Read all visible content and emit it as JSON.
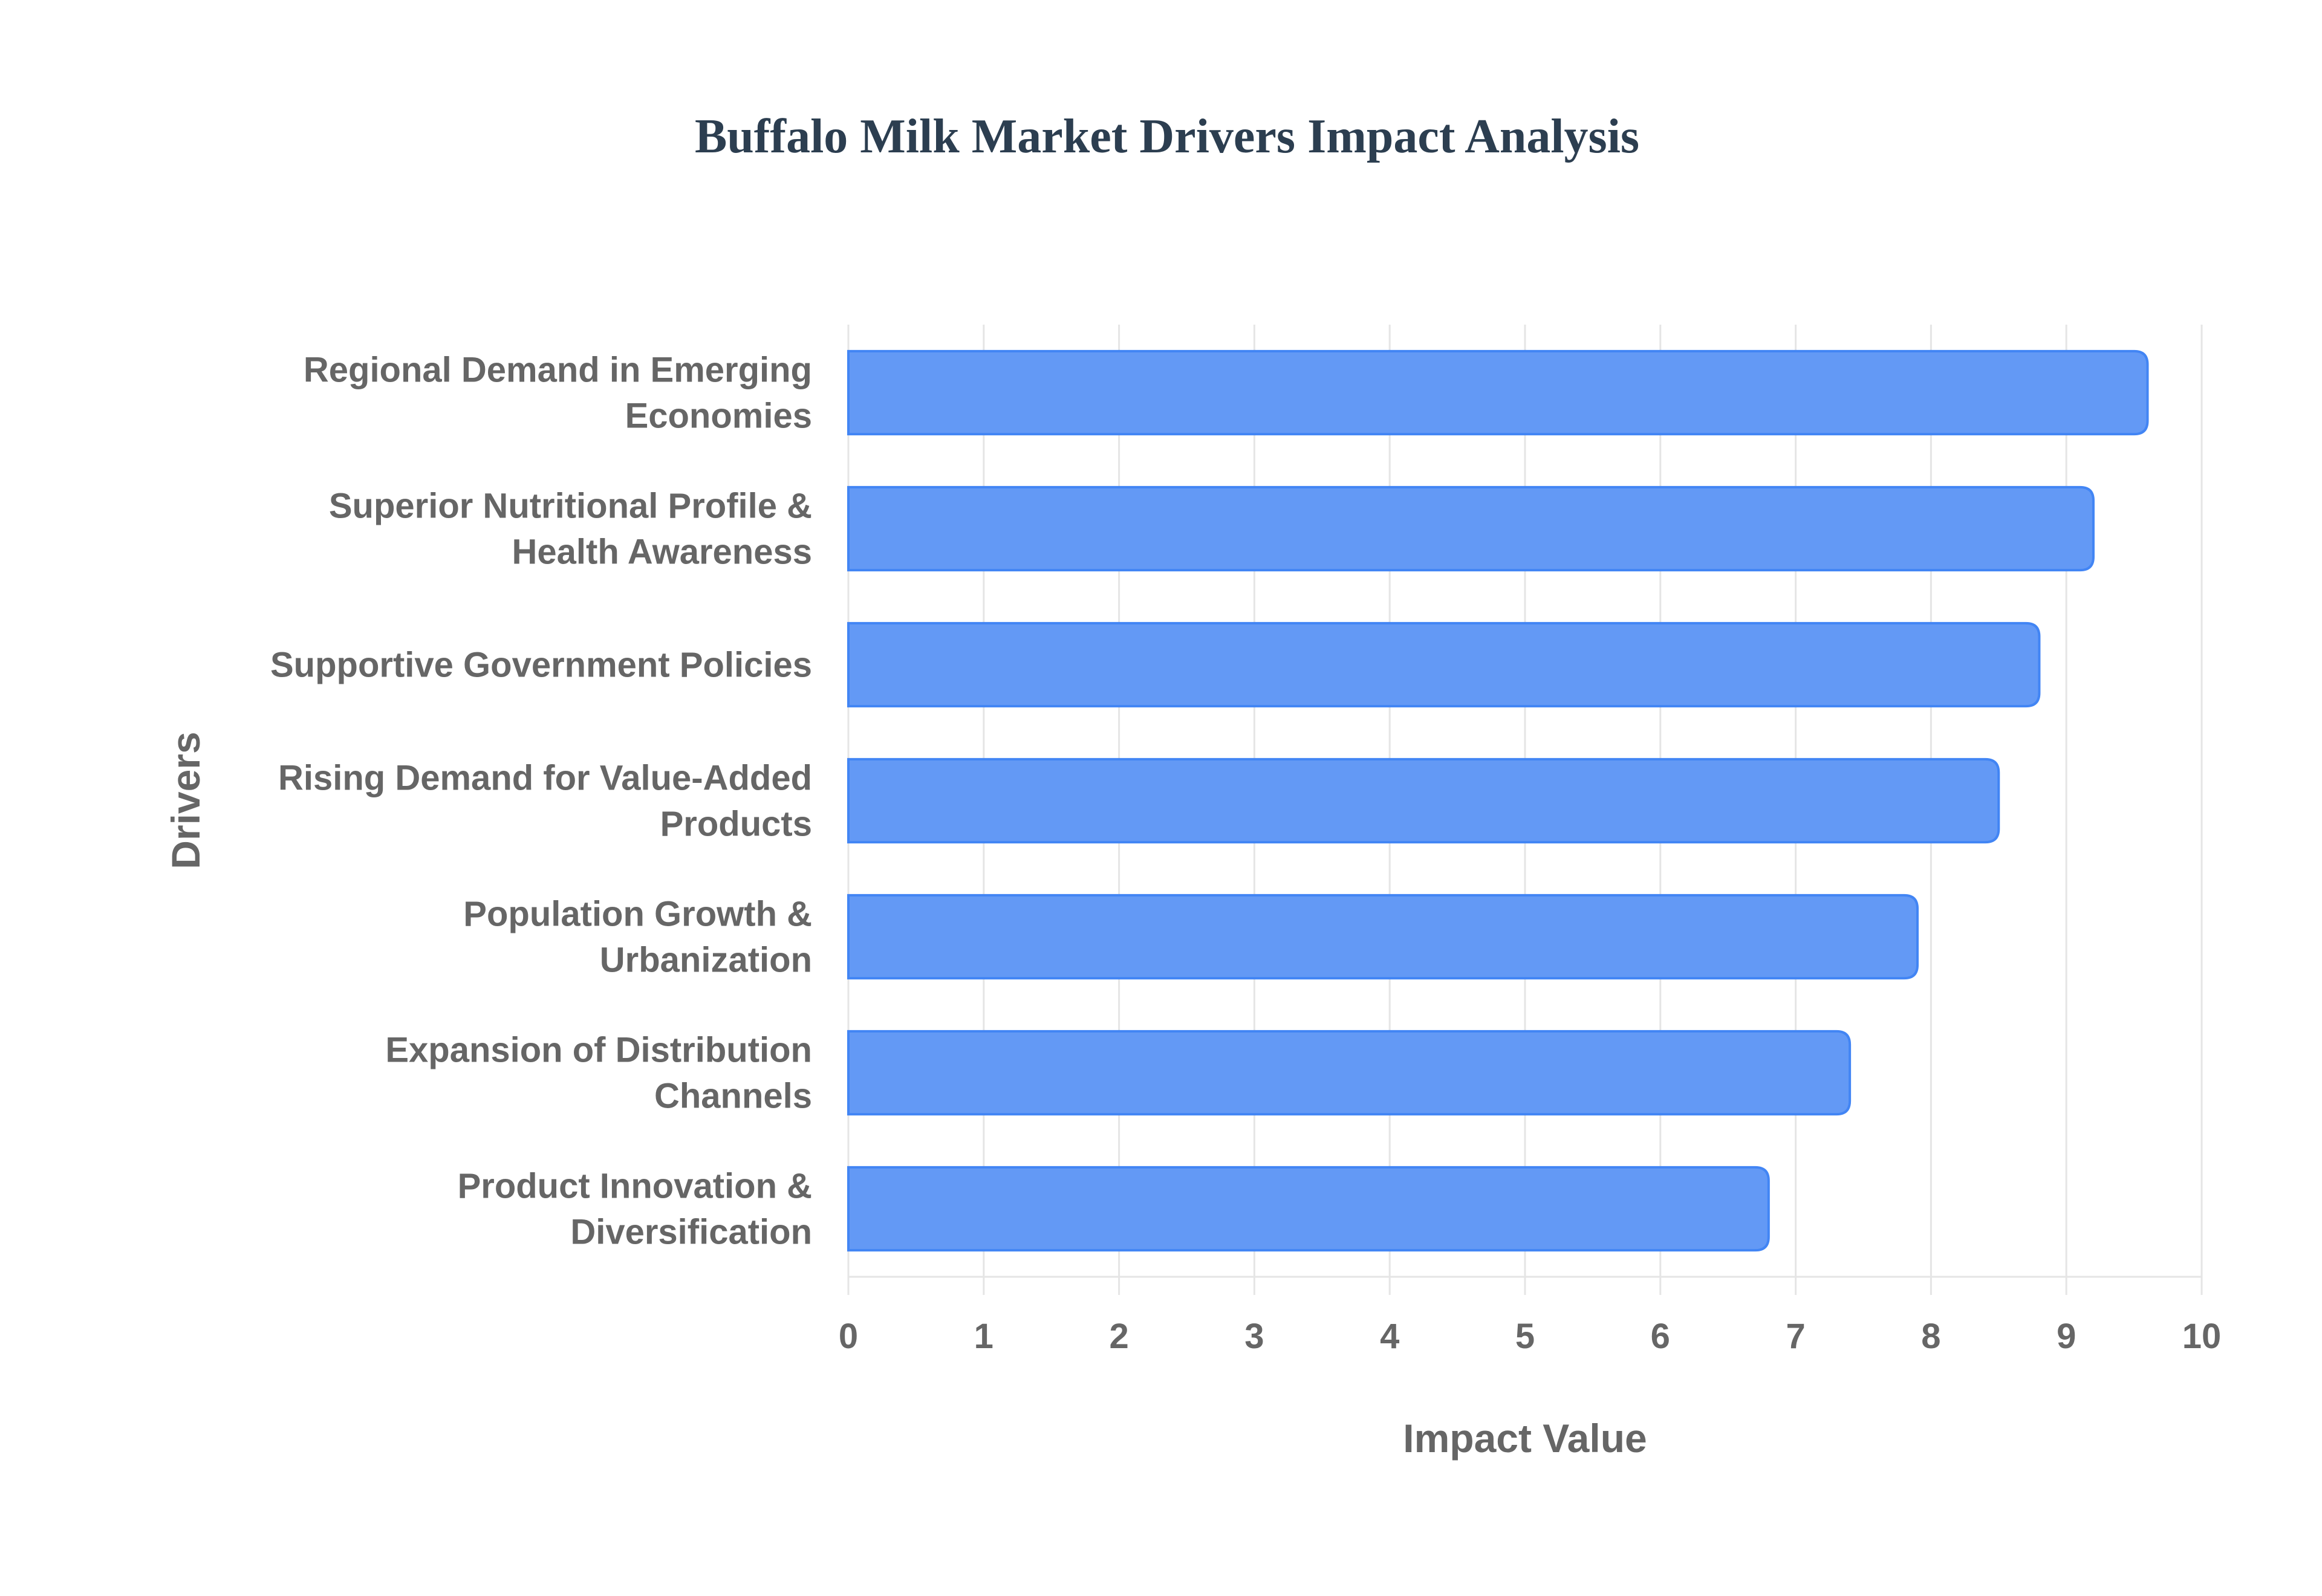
{
  "chart_data": {
    "type": "bar",
    "orientation": "horizontal",
    "title": "Buffalo Milk Market Drivers Impact Analysis",
    "xlabel": "Impact Value",
    "ylabel": "Drivers",
    "xlim": [
      0,
      10
    ],
    "xticks": [
      "0",
      "1",
      "2",
      "3",
      "4",
      "5",
      "6",
      "7",
      "8",
      "9",
      "10"
    ],
    "grid": true,
    "categories": [
      [
        "Regional Demand in Emerging",
        "Economies"
      ],
      [
        "Superior Nutritional Profile &",
        "Health Awareness"
      ],
      [
        "Supportive Government Policies"
      ],
      [
        "Rising Demand for Value-Added",
        "Products"
      ],
      [
        "Population Growth &",
        "Urbanization"
      ],
      [
        "Expansion of Distribution",
        "Channels"
      ],
      [
        "Product Innovation &",
        "Diversification"
      ]
    ],
    "values": [
      9.6,
      9.2,
      8.8,
      8.5,
      7.9,
      7.4,
      6.8
    ],
    "colors": {
      "bar_fill": "#6399f5",
      "bar_border": "#4285f4",
      "grid": "#e5e5e5",
      "text": "#666666",
      "title": "#2c3e50"
    }
  }
}
